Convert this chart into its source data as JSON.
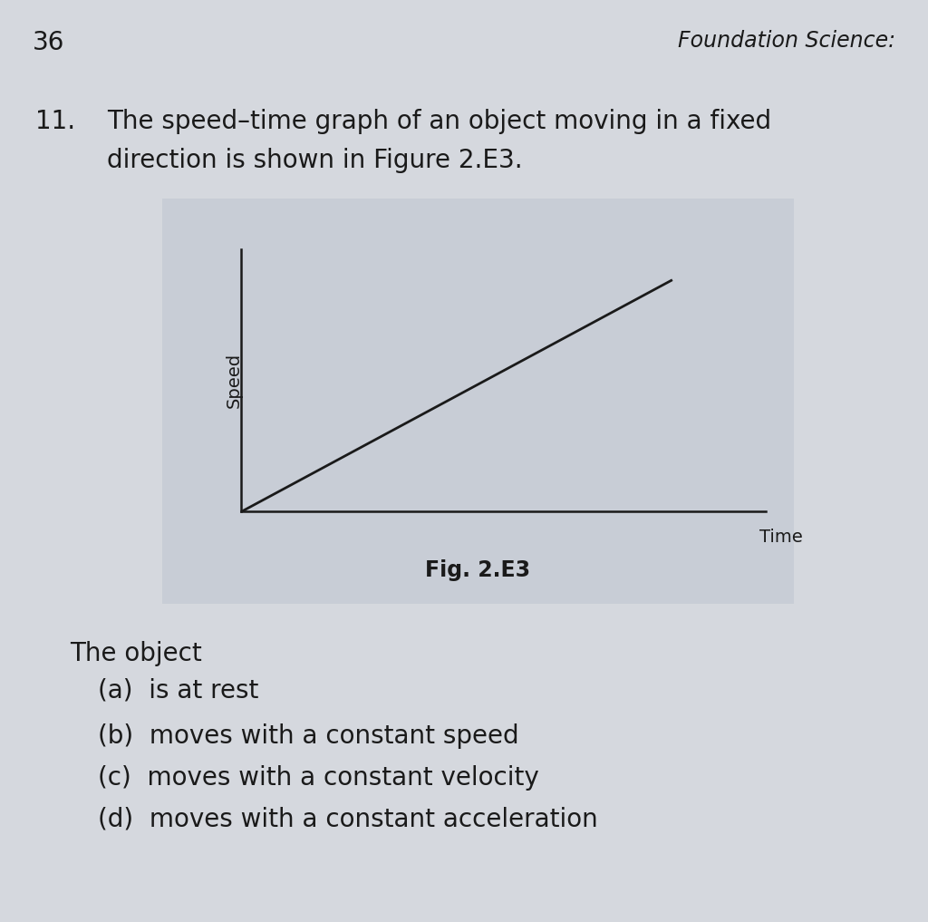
{
  "page_number": "36",
  "header_right": "Foundation Science:",
  "question_number": "11.",
  "question_text_line1": "The speed–time graph of an object moving in a fixed",
  "question_text_line2": "direction is shown in Figure 2.E3.",
  "fig_caption": "Fig. 2.E3",
  "xlabel": "Time",
  "ylabel": "Speed",
  "answer_intro": "The object",
  "options": [
    "(a)  is at rest",
    "(b)  moves with a constant speed",
    "(c)  moves with a constant velocity",
    "(d)  moves with a constant acceleration"
  ],
  "bg_color": "#c8cdd6",
  "page_bg": "#d5d8de",
  "line_color": "#1a1a1a",
  "text_color": "#1a1a1a",
  "axis_color": "#1a1a1a"
}
